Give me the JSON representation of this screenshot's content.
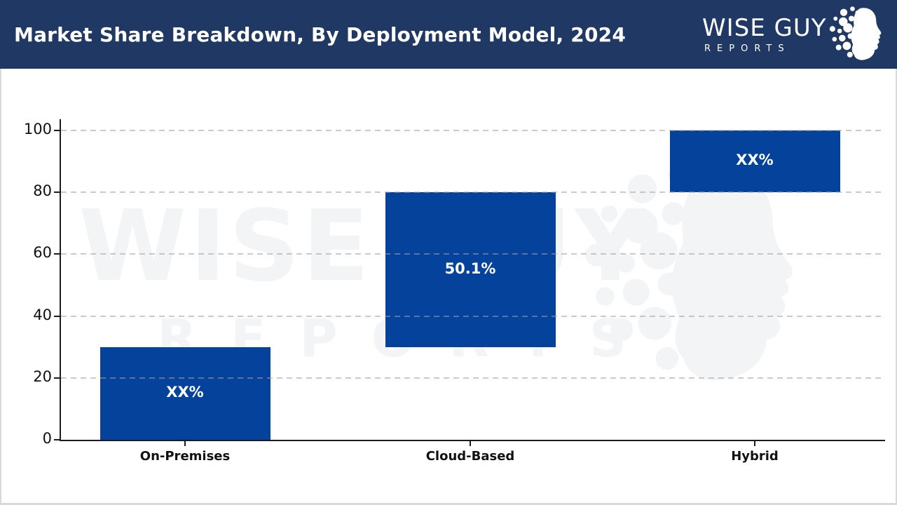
{
  "header": {
    "title": "Market Share Breakdown, By Deployment Model, 2024",
    "logo": {
      "line1": "WISE GUY",
      "line2": "REPORTS",
      "face_icon": "dotted-head-profile-icon"
    }
  },
  "watermark": {
    "line1": "WISE GUY",
    "line2": "REPORTS",
    "face_icon": "dotted-head-profile-icon"
  },
  "colors": {
    "header_bg": "#1f3864",
    "bar": "#04429c",
    "watermark": "#f3f4f6",
    "gridline": "#d0d0d0",
    "axis": "#1c1c1c",
    "bar_label": "#ffffff"
  },
  "chart_data": {
    "type": "bar",
    "variant": "stacked-percentage-breakdown (floating segments)",
    "title": "Market Share Breakdown, By Deployment Model, 2024",
    "categories": [
      "On-Premises",
      "Cloud-Based",
      "Hybrid"
    ],
    "bars": [
      {
        "category": "On-Premises",
        "label": "XX%",
        "start": 0,
        "value": 29.9
      },
      {
        "category": "Cloud-Based",
        "label": "50.1%",
        "start": 29.9,
        "value": 50.1
      },
      {
        "category": "Hybrid",
        "label": "XX%",
        "start": 80.0,
        "value": 20.0
      }
    ],
    "y_axis": {
      "ticks": [
        0,
        20,
        40,
        60,
        80,
        100
      ],
      "range": [
        0,
        104
      ]
    },
    "x_axis": {
      "label": ""
    },
    "grid": {
      "orientation": "horizontal",
      "style": "dashed",
      "drawn_over_bars": true
    },
    "legend": null
  }
}
